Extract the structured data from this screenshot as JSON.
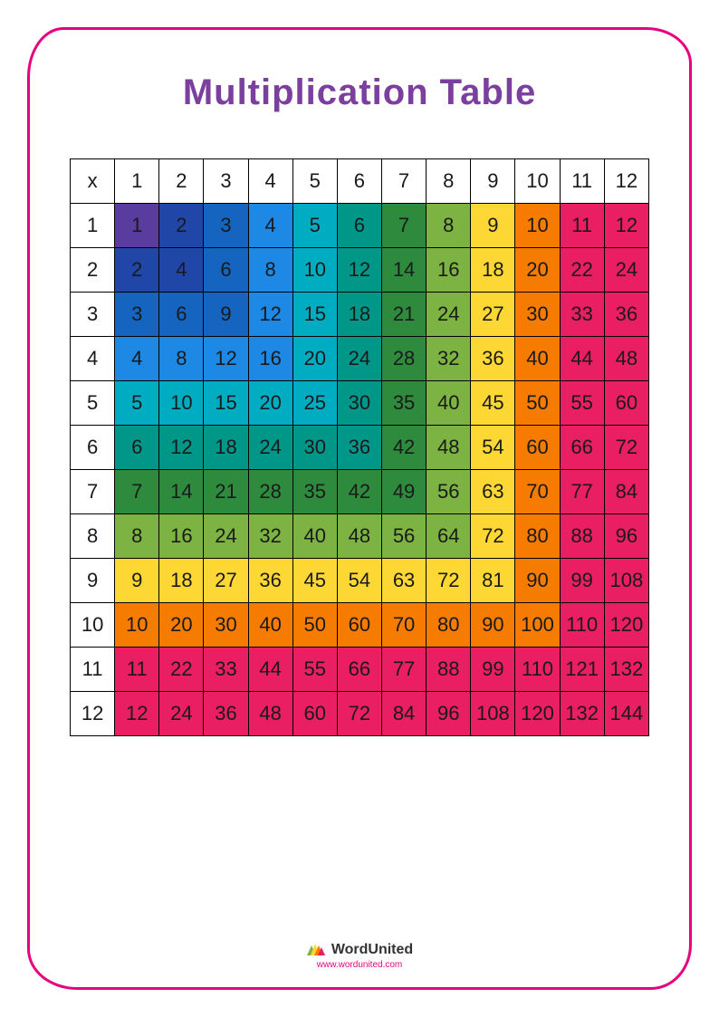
{
  "title": "Multiplication Table",
  "border_color": "#e6007e",
  "title_color": "#7b3f9e",
  "table": {
    "corner_label": "x",
    "headers": [
      "1",
      "2",
      "3",
      "4",
      "5",
      "6",
      "7",
      "8",
      "9",
      "10",
      "11",
      "12"
    ],
    "row_headers": [
      "1",
      "2",
      "3",
      "4",
      "5",
      "6",
      "7",
      "8",
      "9",
      "10",
      "11",
      "12"
    ],
    "rows": [
      [
        "1",
        "2",
        "3",
        "4",
        "5",
        "6",
        "7",
        "8",
        "9",
        "10",
        "11",
        "12"
      ],
      [
        "2",
        "4",
        "6",
        "8",
        "10",
        "12",
        "14",
        "16",
        "18",
        "20",
        "22",
        "24"
      ],
      [
        "3",
        "6",
        "9",
        "12",
        "15",
        "18",
        "21",
        "24",
        "27",
        "30",
        "33",
        "36"
      ],
      [
        "4",
        "8",
        "12",
        "16",
        "20",
        "24",
        "28",
        "32",
        "36",
        "40",
        "44",
        "48"
      ],
      [
        "5",
        "10",
        "15",
        "20",
        "25",
        "30",
        "35",
        "40",
        "45",
        "50",
        "55",
        "60"
      ],
      [
        "6",
        "12",
        "18",
        "24",
        "30",
        "36",
        "42",
        "48",
        "54",
        "60",
        "66",
        "72"
      ],
      [
        "7",
        "14",
        "21",
        "28",
        "35",
        "42",
        "49",
        "56",
        "63",
        "70",
        "77",
        "84"
      ],
      [
        "8",
        "16",
        "24",
        "32",
        "40",
        "48",
        "56",
        "64",
        "72",
        "80",
        "88",
        "96"
      ],
      [
        "9",
        "18",
        "27",
        "36",
        "45",
        "54",
        "63",
        "72",
        "81",
        "90",
        "99",
        "108"
      ],
      [
        "10",
        "20",
        "30",
        "40",
        "50",
        "60",
        "70",
        "80",
        "90",
        "100",
        "110",
        "120"
      ],
      [
        "11",
        "22",
        "33",
        "44",
        "55",
        "66",
        "77",
        "88",
        "99",
        "110",
        "121",
        "132"
      ],
      [
        "12",
        "24",
        "36",
        "48",
        "60",
        "72",
        "84",
        "96",
        "108",
        "120",
        "132",
        "144"
      ]
    ],
    "cell_colors": {
      "band0": "#5a3b9e",
      "band1": "#2046a8",
      "band2": "#1565c0",
      "band3": "#1e88e5",
      "band4": "#00acc1",
      "band5": "#009688",
      "band6": "#2e8b3d",
      "band7": "#7cb342",
      "band8": "#fdd835",
      "band9": "#f57c00",
      "band10": "#e91e63",
      "band11": "#e91e63"
    },
    "header_bg": "#ffffff",
    "cell_border": "#000000",
    "text_color": "#1a1a1a",
    "cell_fontsize": 22
  },
  "footer": {
    "brand_name": "WordUnited",
    "url": "www.wordunited.com",
    "url_color": "#e6007e",
    "icon_colors": [
      "#7cb342",
      "#fdd835",
      "#f57c00",
      "#e91e63"
    ]
  }
}
